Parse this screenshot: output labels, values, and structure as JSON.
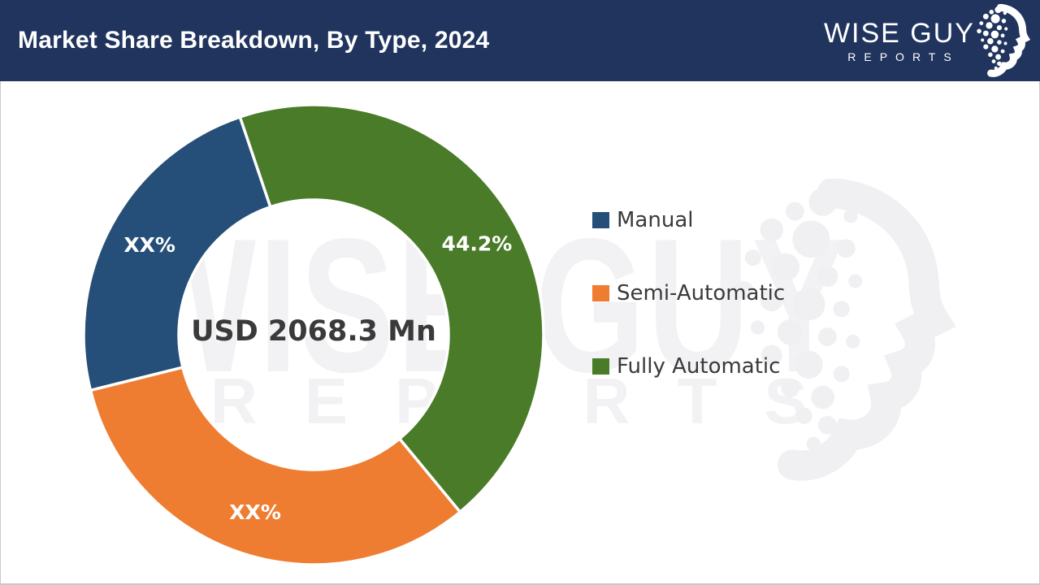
{
  "header": {
    "title": "Market Share Breakdown, By Type, 2024",
    "background_color": "#20345e",
    "logo": {
      "name": "WISE GUY",
      "tagline": "REPORTS"
    }
  },
  "watermark": {
    "line1": "WISE GUY",
    "line2": "REPORTS"
  },
  "chart_data": {
    "type": "pie",
    "subtype": "donut",
    "title": "Market Share Breakdown, By Type, 2024",
    "center_label": "USD 2068.3 Mn",
    "total_value": 2068.3,
    "units": "USD Mn",
    "start_angle_deg": -104,
    "legend_position": "right",
    "segments": [
      {
        "name": "Manual",
        "display_label": "XX%",
        "value_pct": 23.7,
        "color": "#254f78"
      },
      {
        "name": "Fully Automatic",
        "display_label": "44.2%",
        "value_pct": 44.2,
        "color": "#4a7b28"
      },
      {
        "name": "Semi-Automatic",
        "display_label": "XX%",
        "value_pct": 32.1,
        "color": "#ee7d31"
      }
    ],
    "legend": [
      {
        "label": "Manual",
        "color": "#254f78"
      },
      {
        "label": "Semi-Automatic",
        "color": "#ee7d31"
      },
      {
        "label": "Fully Automatic",
        "color": "#4a7b28"
      }
    ]
  }
}
